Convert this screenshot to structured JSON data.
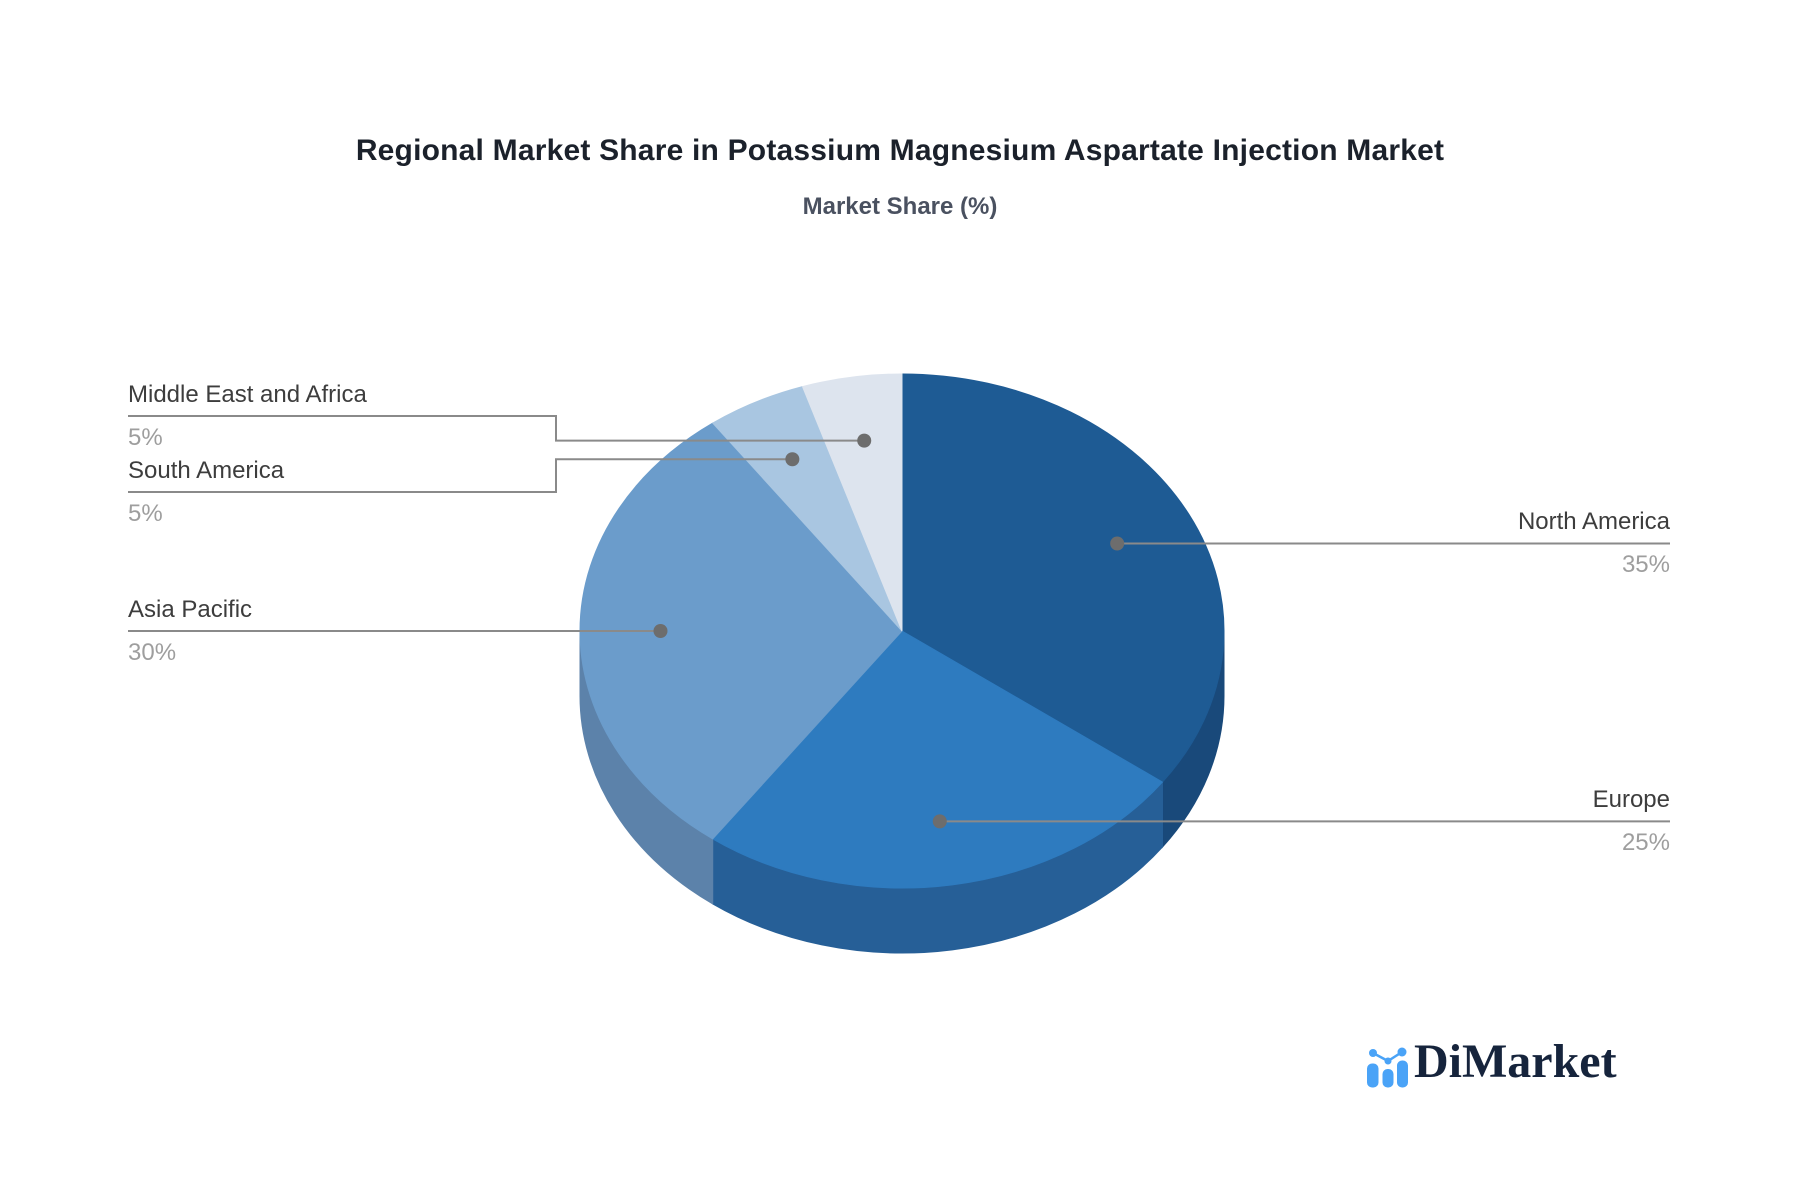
{
  "chart_data": {
    "type": "pie",
    "style": "3d",
    "title": "Regional Market Share in Potassium Magnesium Aspartate Injection Market",
    "subtitle": "Market Share (%)",
    "unit": "%",
    "start_angle": "12-oclock",
    "direction": "clockwise",
    "legend_position": "none",
    "categories": [
      "North America",
      "Europe",
      "Asia Pacific",
      "South America",
      "Middle East and Africa"
    ],
    "values": [
      35,
      25,
      30,
      5,
      5
    ],
    "value_labels": [
      "35%",
      "25%",
      "30%",
      "5%",
      "5%"
    ],
    "colors": [
      "#1e5b94",
      "#2e7bbf",
      "#6b9ccb",
      "#a9c6e1",
      "#dde4ee"
    ],
    "side_colors": [
      "#19497a",
      "#265f97",
      "#5c82aa",
      "#8aa6c4",
      "#b8c4d4"
    ],
    "callout_line_color": "#8a8a8a",
    "callout_dot_color": "#6d6d6d",
    "label_name_color": "#3d3d3d",
    "label_value_color": "#9e9e9e"
  },
  "branding": {
    "logo_text": "DiMarket",
    "logo_icon": "bar-chart-trend-icon",
    "logo_text_color": "#16243c",
    "logo_icon_color": "#4aa3f7"
  }
}
